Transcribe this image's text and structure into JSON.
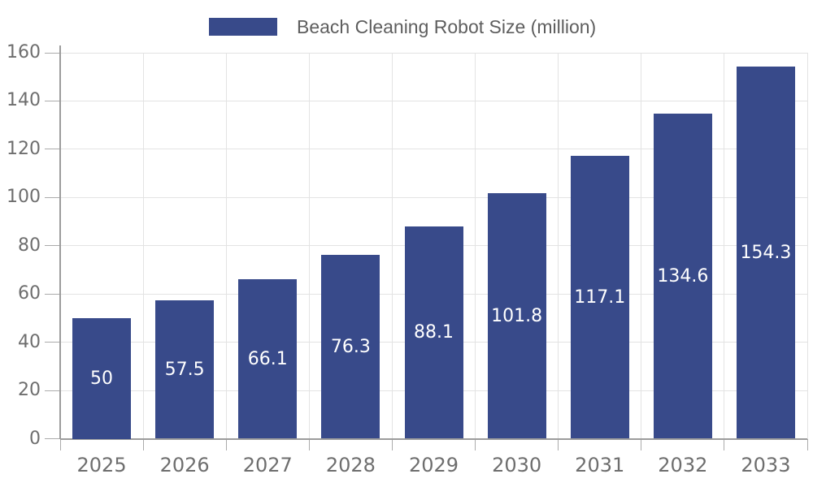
{
  "legend": {
    "label": "Beach Cleaning Robot Size (million)",
    "swatch_color": "#384a8a"
  },
  "chart_data": {
    "type": "bar",
    "title": "Beach Cleaning Robot Size (million)",
    "categories": [
      "2025",
      "2026",
      "2027",
      "2028",
      "2029",
      "2030",
      "2031",
      "2032",
      "2033"
    ],
    "values": [
      50,
      57.5,
      66.1,
      76.3,
      88.1,
      101.8,
      117.1,
      134.6,
      154.3
    ],
    "value_labels": [
      "50",
      "57.5",
      "66.1",
      "76.3",
      "88.1",
      "101.8",
      "117.1",
      "134.6",
      "154.3"
    ],
    "xlabel": "",
    "ylabel": "",
    "ylim": [
      0,
      160
    ],
    "yticks": [
      0,
      20,
      40,
      60,
      80,
      100,
      120,
      140,
      160
    ],
    "grid": true,
    "legend_position": "top-center",
    "bar_color": "#384a8a",
    "bar_label_color": "#ffffff",
    "axis_color": "#9c9c9c",
    "grid_color": "#e3e3e3",
    "tick_label_color": "#6e6e6e"
  }
}
